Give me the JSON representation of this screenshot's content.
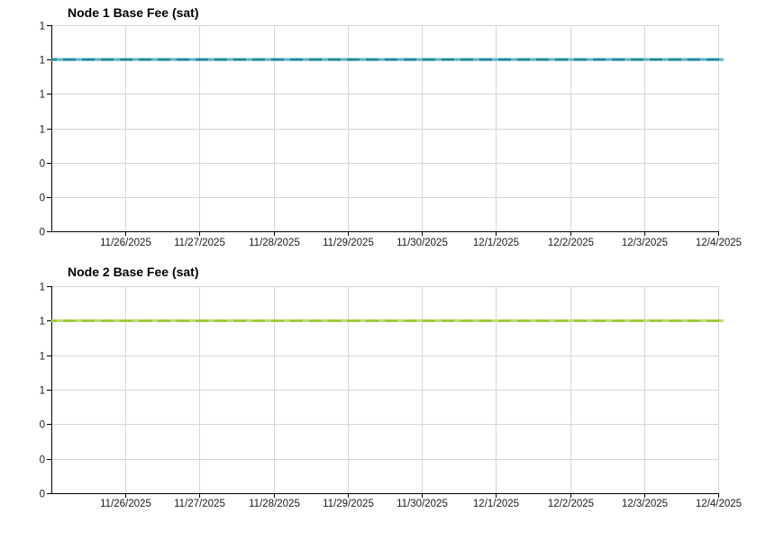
{
  "window": {
    "background": "#ffffff"
  },
  "charts": [
    {
      "title": "Node 1 Base Fee (sat)",
      "line_color": "#1b8a9c",
      "line_color_light": "#68b8c2",
      "axis_color": "#000000",
      "grid_color": "#d6d6d6",
      "tick_label_color": "#1a1a1a",
      "y_tick_labels": [
        "1",
        "1",
        "1",
        "1",
        "0",
        "0",
        "0"
      ],
      "x_tick_labels": [
        "11/26/2025",
        "11/27/2025",
        "11/28/2025",
        "11/29/2025",
        "11/30/2025",
        "12/1/2025",
        "12/2/2025",
        "12/3/2025",
        "12/4/2025"
      ]
    },
    {
      "title": "Node 2 Base Fee (sat)",
      "line_color": "#9cc93c",
      "line_color_light": "#c1dc7e",
      "axis_color": "#000000",
      "grid_color": "#d6d6d6",
      "tick_label_color": "#1a1a1a",
      "y_tick_labels": [
        "1",
        "1",
        "1",
        "1",
        "0",
        "0",
        "0"
      ],
      "x_tick_labels": [
        "11/26/2025",
        "11/27/2025",
        "11/28/2025",
        "11/29/2025",
        "11/30/2025",
        "12/1/2025",
        "12/2/2025",
        "12/3/2025",
        "12/4/2025"
      ]
    }
  ],
  "chart_data": [
    {
      "type": "line",
      "title": "Node 1 Base Fee (sat)",
      "x": [
        "11/25/2025",
        "11/26/2025",
        "11/27/2025",
        "11/28/2025",
        "11/29/2025",
        "11/30/2025",
        "12/1/2025",
        "12/2/2025",
        "12/3/2025",
        "12/4/2025"
      ],
      "series": [
        {
          "name": "Node 1 Base Fee (sat)",
          "values": [
            1,
            1,
            1,
            1,
            1,
            1,
            1,
            1,
            1,
            1
          ]
        }
      ],
      "xlabel": "",
      "ylabel": "",
      "ylim": [
        0,
        1.2
      ],
      "y_ticks": [
        0,
        0.2,
        0.4,
        0.6,
        0.8,
        1.0,
        1.2
      ],
      "y_tick_display_bottom_to_top": [
        "0",
        "0",
        "0",
        "1",
        "1",
        "1",
        "1"
      ],
      "grid": true,
      "legend": "none",
      "line_color": "#1b8a9c"
    },
    {
      "type": "line",
      "title": "Node 2 Base Fee (sat)",
      "x": [
        "11/25/2025",
        "11/26/2025",
        "11/27/2025",
        "11/28/2025",
        "11/29/2025",
        "11/30/2025",
        "12/1/2025",
        "12/2/2025",
        "12/3/2025",
        "12/4/2025"
      ],
      "series": [
        {
          "name": "Node 2 Base Fee (sat)",
          "values": [
            1,
            1,
            1,
            1,
            1,
            1,
            1,
            1,
            1,
            1
          ]
        }
      ],
      "xlabel": "",
      "ylabel": "",
      "ylim": [
        0,
        1.2
      ],
      "y_ticks": [
        0,
        0.2,
        0.4,
        0.6,
        0.8,
        1.0,
        1.2
      ],
      "y_tick_display_bottom_to_top": [
        "0",
        "0",
        "0",
        "1",
        "1",
        "1",
        "1"
      ],
      "grid": true,
      "legend": "none",
      "line_color": "#9cc93c"
    }
  ]
}
